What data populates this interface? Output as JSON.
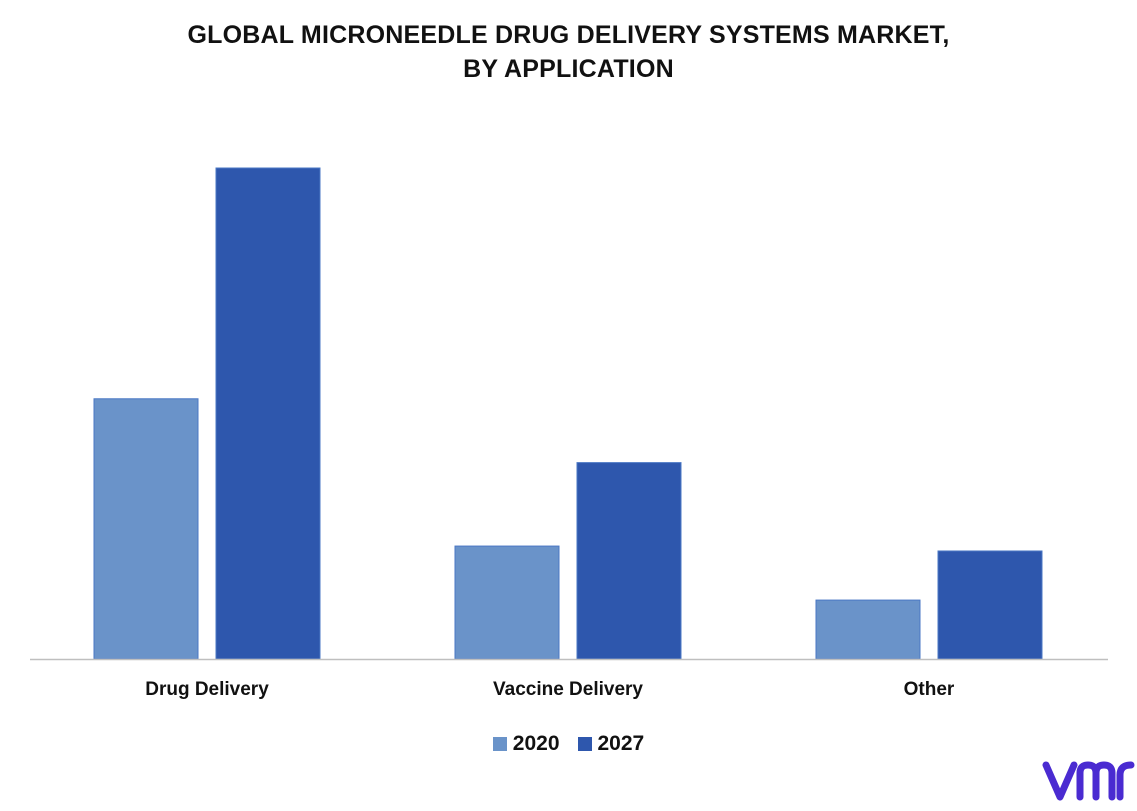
{
  "chart_data": {
    "type": "bar",
    "title_lines": [
      "GLOBAL MICRONEEDLE DRUG DELIVERY SYSTEMS MARKET,",
      "BY APPLICATION"
    ],
    "categories": [
      "Drug Delivery",
      "Vaccine Delivery",
      "Other"
    ],
    "series": [
      {
        "name": "2020",
        "color": "#6a93c9",
        "values": [
          53,
          23,
          12
        ]
      },
      {
        "name": "2027",
        "color": "#2e57ad",
        "values": [
          100,
          40,
          22
        ]
      }
    ],
    "ylim": [
      0,
      100
    ],
    "grid": false,
    "legend_position": "bottom-center"
  },
  "logo": {
    "text": "vmr",
    "color": "#4a2bd1",
    "icon": "vmr-logo-icon"
  }
}
